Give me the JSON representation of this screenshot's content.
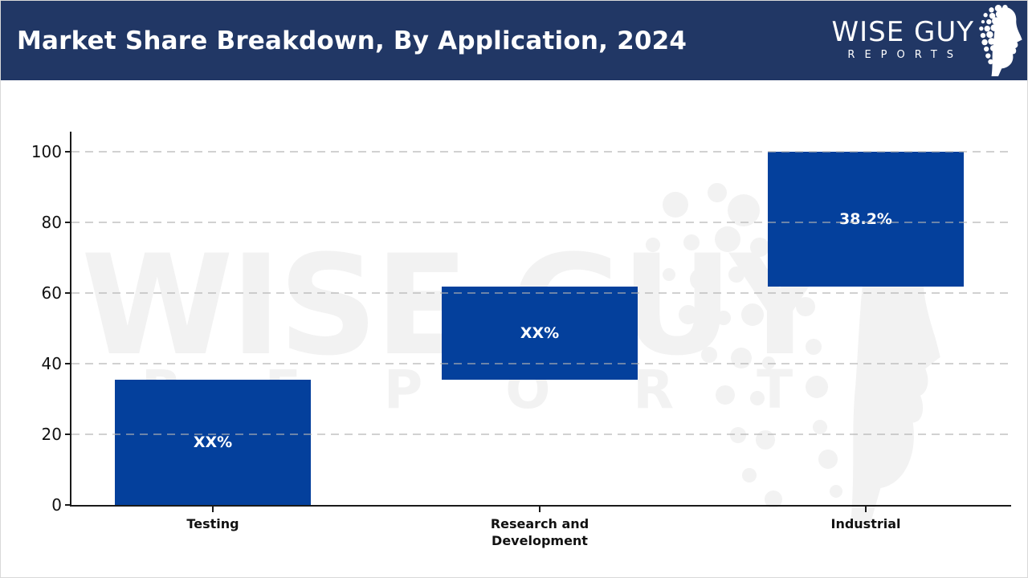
{
  "header": {
    "title": "Market Share Breakdown, By Application, 2024",
    "logo": {
      "line1": "WISE GUY",
      "line2": "REPORTS"
    }
  },
  "watermark": {
    "line1": "WISE GUY",
    "line2": "R E P O R T S"
  },
  "chart_data": {
    "type": "bar",
    "subtype": "floating-cascade-segments",
    "title": "Market Share Breakdown, By Application, 2024",
    "categories": [
      "Testing",
      "Research and Development",
      "Industrial"
    ],
    "bars": [
      {
        "category": "Testing",
        "start": 0,
        "end": 35.5,
        "label": "XX%"
      },
      {
        "category": "Research and Development",
        "start": 35.5,
        "end": 61.8,
        "label": "XX%"
      },
      {
        "category": "Industrial",
        "start": 61.8,
        "end": 100,
        "label": "38.2%"
      }
    ],
    "yticks": [
      0,
      20,
      40,
      60,
      80,
      100
    ],
    "ylim": [
      0,
      105.5
    ],
    "xlabel": "",
    "ylabel": "",
    "legend": null,
    "grid": "horizontal-dashed",
    "bar_color": "#04409c",
    "bar_label_color": "#ffffff"
  },
  "colors": {
    "header_bg": "#213765",
    "bar": "#04409c",
    "axis": "#1a1a1a",
    "grid": "#bbbbbb",
    "watermark": "#f2f2f2",
    "page_border": "#d9d9d9"
  }
}
